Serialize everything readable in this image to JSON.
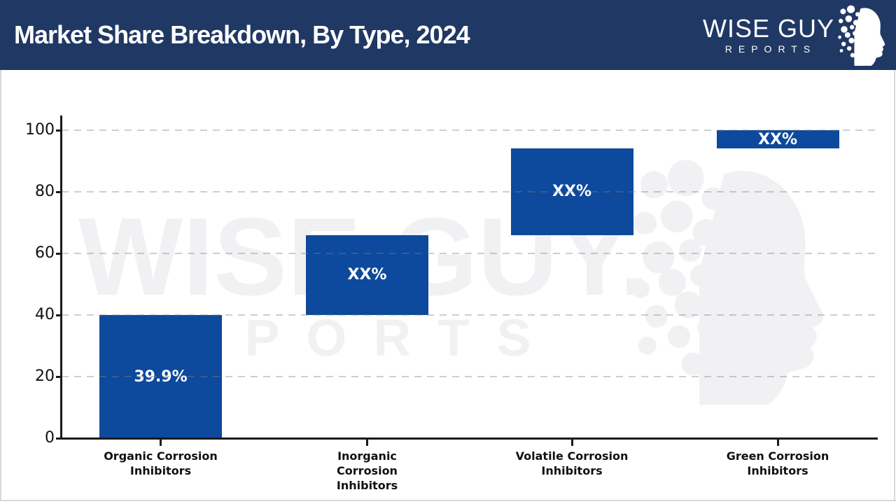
{
  "header": {
    "title": "Market Share Breakdown, By Type, 2024",
    "logo": {
      "name": "WISE GUY",
      "subtitle": "REPORTS"
    }
  },
  "watermark": {
    "line1": "WISE GUY.",
    "line2": "REPORTS"
  },
  "colors": {
    "header_bg": "#203864",
    "bar": "#0d499c",
    "bar_label_text": "#ffffff",
    "axis": "#1a1a1a",
    "watermark": "#f1f1f3"
  },
  "chart_data": {
    "type": "bar",
    "variant": "floating-range-waterfall",
    "title": "Market Share Breakdown, By Type, 2024",
    "categories": [
      "Organic Corrosion Inhibitors",
      "Inorganic Corrosion Inhibitors",
      "Volatile Corrosion Inhibitors",
      "Green Corrosion Inhibitors"
    ],
    "category_lines": [
      [
        "Organic Corrosion",
        "Inhibitors"
      ],
      [
        "Inorganic",
        "Corrosion",
        "Inhibitors"
      ],
      [
        "Volatile Corrosion",
        "Inhibitors"
      ],
      [
        "Green Corrosion",
        "Inhibitors"
      ]
    ],
    "series": [
      {
        "name": "Market share (%)",
        "ranges": [
          [
            0,
            40
          ],
          [
            40,
            66
          ],
          [
            66,
            94
          ],
          [
            94,
            100
          ]
        ],
        "bar_labels": [
          "39.9%",
          "XX%",
          "XX%",
          "XX%"
        ]
      }
    ],
    "ylabel": "",
    "xlabel": "",
    "yticks": [
      0,
      20,
      40,
      60,
      80,
      100
    ],
    "ylim": [
      0,
      105
    ],
    "grid": "horizontal-dashed",
    "legend": "none"
  }
}
